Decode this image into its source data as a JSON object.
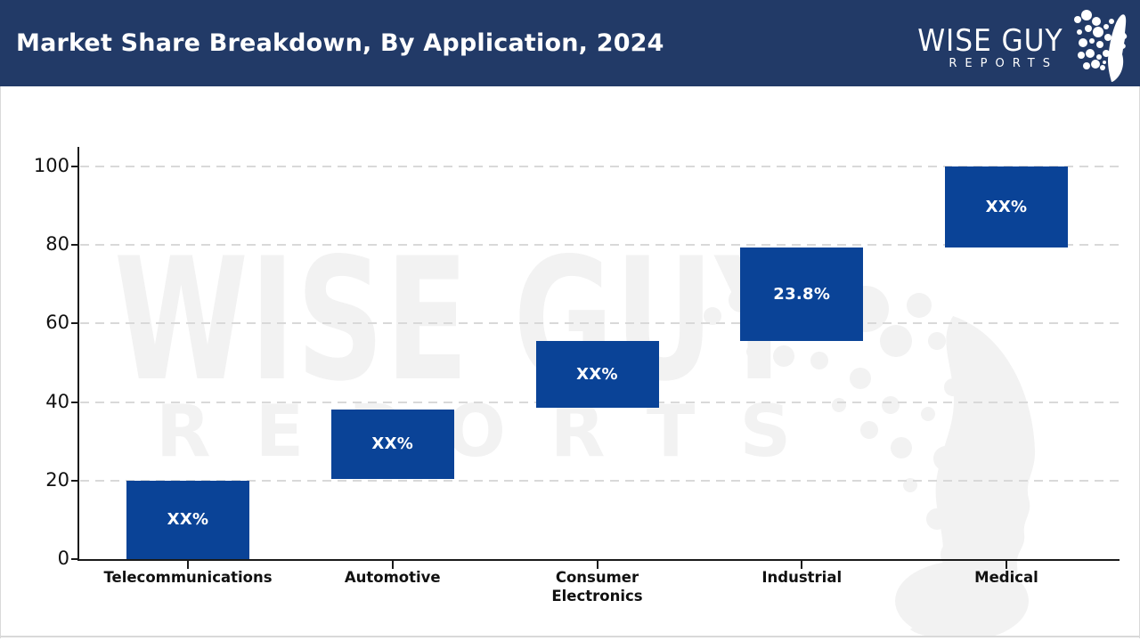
{
  "header": {
    "title": "Market Share Breakdown, By Application, 2024",
    "background_color": "#223a67",
    "logo": {
      "line1": "WISE GUY",
      "line2": "REPORTS",
      "face_icon": "dotted-face-profile"
    }
  },
  "watermark": {
    "line1": "WISE GUY",
    "line2": "REPORTS"
  },
  "chart_data": {
    "type": "bar",
    "subtype": "waterfall",
    "title": "Market Share Breakdown, By Application, 2024",
    "xlabel": "",
    "ylabel": "",
    "categories": [
      "Telecommunications",
      "Automotive",
      "Consumer Electronics",
      "Industrial",
      "Medical"
    ],
    "category_label_lines": [
      [
        "Telecommunications"
      ],
      [
        "Automotive"
      ],
      [
        "Consumer",
        "Electronics"
      ],
      [
        "Industrial"
      ],
      [
        "Medical"
      ]
    ],
    "bars": [
      {
        "category": "Telecommunications",
        "start": 0,
        "end": 20,
        "value_label": "XX%"
      },
      {
        "category": "Automotive",
        "start": 20.5,
        "end": 38,
        "value_label": "XX%"
      },
      {
        "category": "Consumer Electronics",
        "start": 38.5,
        "end": 55.5,
        "value_label": "XX%"
      },
      {
        "category": "Industrial",
        "start": 55.5,
        "end": 79.3,
        "value_label": "23.8%"
      },
      {
        "category": "Medical",
        "start": 79.3,
        "end": 100,
        "value_label": "XX%"
      }
    ],
    "y_ticks": [
      0,
      20,
      40,
      60,
      80,
      100
    ],
    "ylim": [
      0,
      105
    ],
    "grid": {
      "horizontal_dashed": true,
      "color": "#d9d9d9"
    },
    "bar_color": "#0a4397",
    "bar_label_color": "#ffffff",
    "axis_color": "#1a1a1a",
    "legend": "none"
  }
}
